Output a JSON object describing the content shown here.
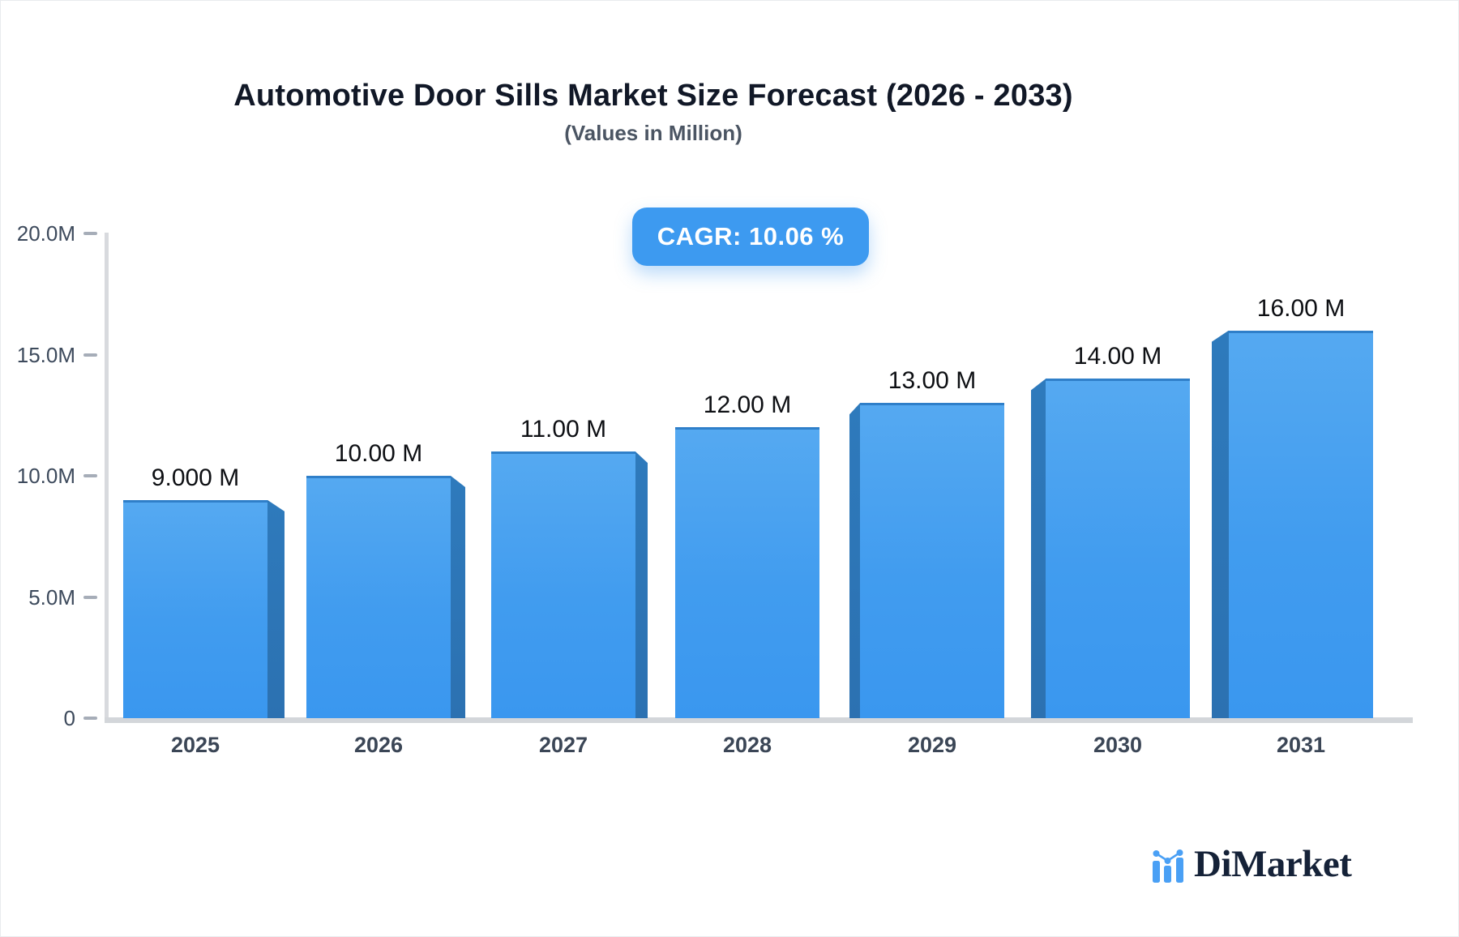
{
  "header": {
    "title": "Automotive Door Sills Market Size Forecast (2026 - 2033)",
    "subtitle": "(Values in Million)",
    "badge_label": "CAGR: 10.06 %"
  },
  "brand": {
    "name": "DiMarket",
    "icon": "bar-chart-sparkline-icon"
  },
  "colors": {
    "accent": "#3d9af0",
    "bar_face_light": "#55a9f1",
    "bar_face_dark": "#3a97ef",
    "bar_top_edge": "#2f7fc9",
    "bar_side": "#2c73b5",
    "axis": "#d5d8db",
    "tick": "#a6adb8",
    "axis_label": "#3d4a5c",
    "value_label": "#0d0f13",
    "title": "#111827",
    "subtitle": "#4b5563",
    "badge_bg": "#3d9af0",
    "badge_text": "#ffffff",
    "brand_text": "#152238",
    "brand_icon": "#4aa0f5"
  },
  "chart_data": {
    "type": "bar",
    "title": "Automotive Door Sills Market Size Forecast (2026 - 2033)",
    "subtitle": "(Values in Million)",
    "unit": "Million",
    "categories": [
      "2025",
      "2026",
      "2027",
      "2028",
      "2029",
      "2030",
      "2031"
    ],
    "values": [
      9,
      10,
      11,
      12,
      13,
      14,
      16
    ],
    "value_labels": [
      "9.000 M",
      "10.00 M",
      "11.00 M",
      "12.00 M",
      "13.00 M",
      "14.00 M",
      "16.00 M"
    ],
    "xlabel": "",
    "ylabel": "",
    "ylim": [
      0,
      20
    ],
    "yticks": [
      {
        "label": "20.0M",
        "value": 20
      },
      {
        "label": "15.0M",
        "value": 15
      },
      {
        "label": "10.0M",
        "value": 10
      },
      {
        "label": "5.0M",
        "value": 5
      },
      {
        "label": "0",
        "value": 0
      }
    ],
    "grid": false,
    "legend": false,
    "bar_style": "3d-beveled, side faces angled toward chart center",
    "annotations": [
      "CAGR: 10.06 %"
    ]
  }
}
